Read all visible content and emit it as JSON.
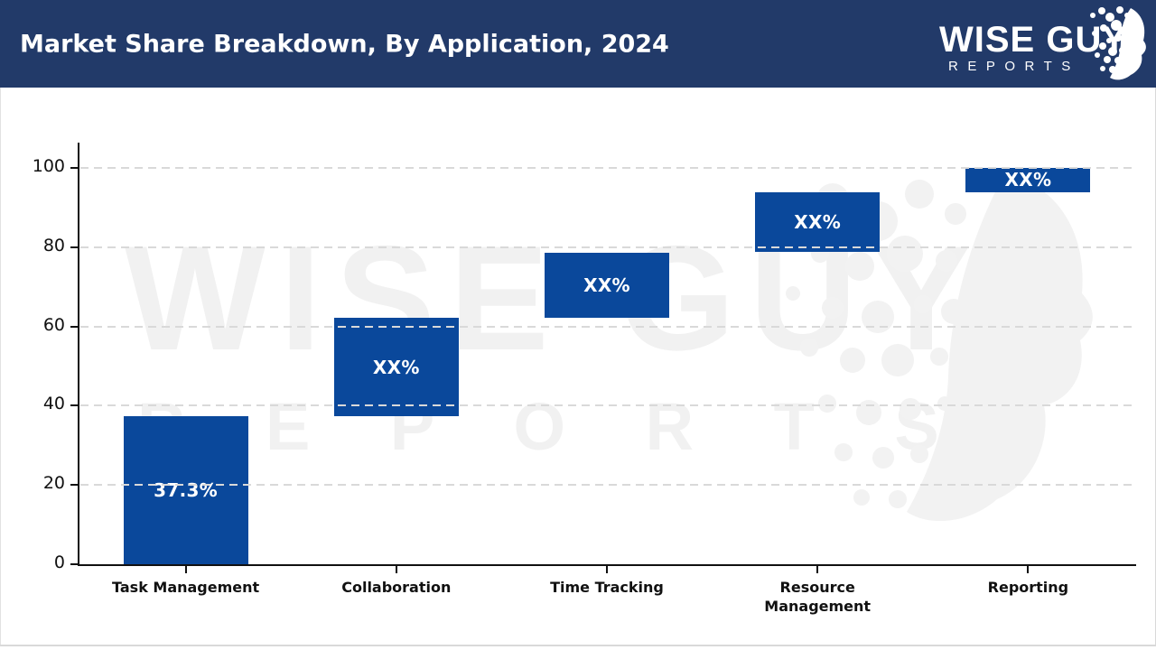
{
  "header": {
    "title": "Market Share Breakdown, By Application, 2024",
    "logo": {
      "line1": "WISE GUY",
      "line2": "R E P O R T S"
    }
  },
  "watermark": {
    "line1": "WISE GUY",
    "line2": "R E P O R T S"
  },
  "colors": {
    "header_bg": "#223a69",
    "bar": "#0a489b",
    "bar_label": "#ffffff",
    "grid": "#d9d9d9",
    "axis": "#111111",
    "watermark": "#f1f1f1"
  },
  "chart_data": {
    "type": "bar",
    "variant": "waterfall",
    "title": "Market Share Breakdown, By Application, 2024",
    "categories": [
      "Task Management",
      "Collaboration",
      "Time Tracking",
      "Resource Management",
      "Reporting"
    ],
    "segments": [
      {
        "category": "Task Management",
        "start": 0,
        "end": 37.3,
        "value": 37.3,
        "label": "37.3%"
      },
      {
        "category": "Collaboration",
        "start": 37.3,
        "end": 62.1,
        "value": 24.8,
        "label": "XX%"
      },
      {
        "category": "Time Tracking",
        "start": 62.1,
        "end": 78.7,
        "value": 16.6,
        "label": "XX%"
      },
      {
        "category": "Resource Management",
        "start": 78.7,
        "end": 93.9,
        "value": 15.2,
        "label": "XX%"
      },
      {
        "category": "Reporting",
        "start": 93.9,
        "end": 100,
        "value": 6.1,
        "label": "XX%"
      }
    ],
    "ylim": [
      0,
      100
    ],
    "yticks": [
      "0",
      "20",
      "40",
      "60",
      "80",
      "100"
    ],
    "xlabel": "",
    "ylabel": "",
    "grid": {
      "axis": "y",
      "style": "dashed",
      "drawn_over_bars": true
    },
    "legend": "none",
    "bar_labels_hidden_as": "XX%"
  }
}
